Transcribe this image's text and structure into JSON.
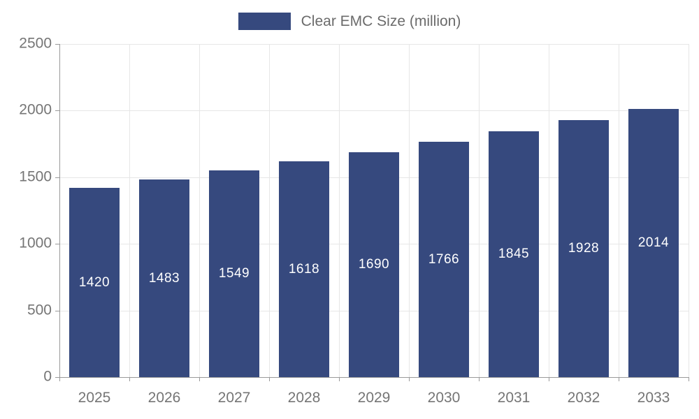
{
  "chart_data": {
    "type": "bar",
    "title": "",
    "categories": [
      "2025",
      "2026",
      "2027",
      "2028",
      "2029",
      "2030",
      "2031",
      "2032",
      "2033"
    ],
    "series": [
      {
        "name": "Clear EMC Size (million)",
        "values": [
          1420,
          1483,
          1549,
          1618,
          1690,
          1766,
          1845,
          1928,
          2014
        ]
      }
    ],
    "xlabel": "",
    "ylabel": "",
    "ylim": [
      0,
      2500
    ],
    "y_ticks": [
      0,
      500,
      1000,
      1500,
      2000,
      2500
    ],
    "grid": "on",
    "legend_position": "top-center",
    "value_labels": "inside-center",
    "colors": {
      "bar": "#36497E",
      "grid": "#E6E6E6",
      "axis": "#999999",
      "axis_text": "#757575",
      "legend_text": "#6b6b6b",
      "value_label": "#FFFFFF",
      "background": "#FFFFFF"
    }
  }
}
